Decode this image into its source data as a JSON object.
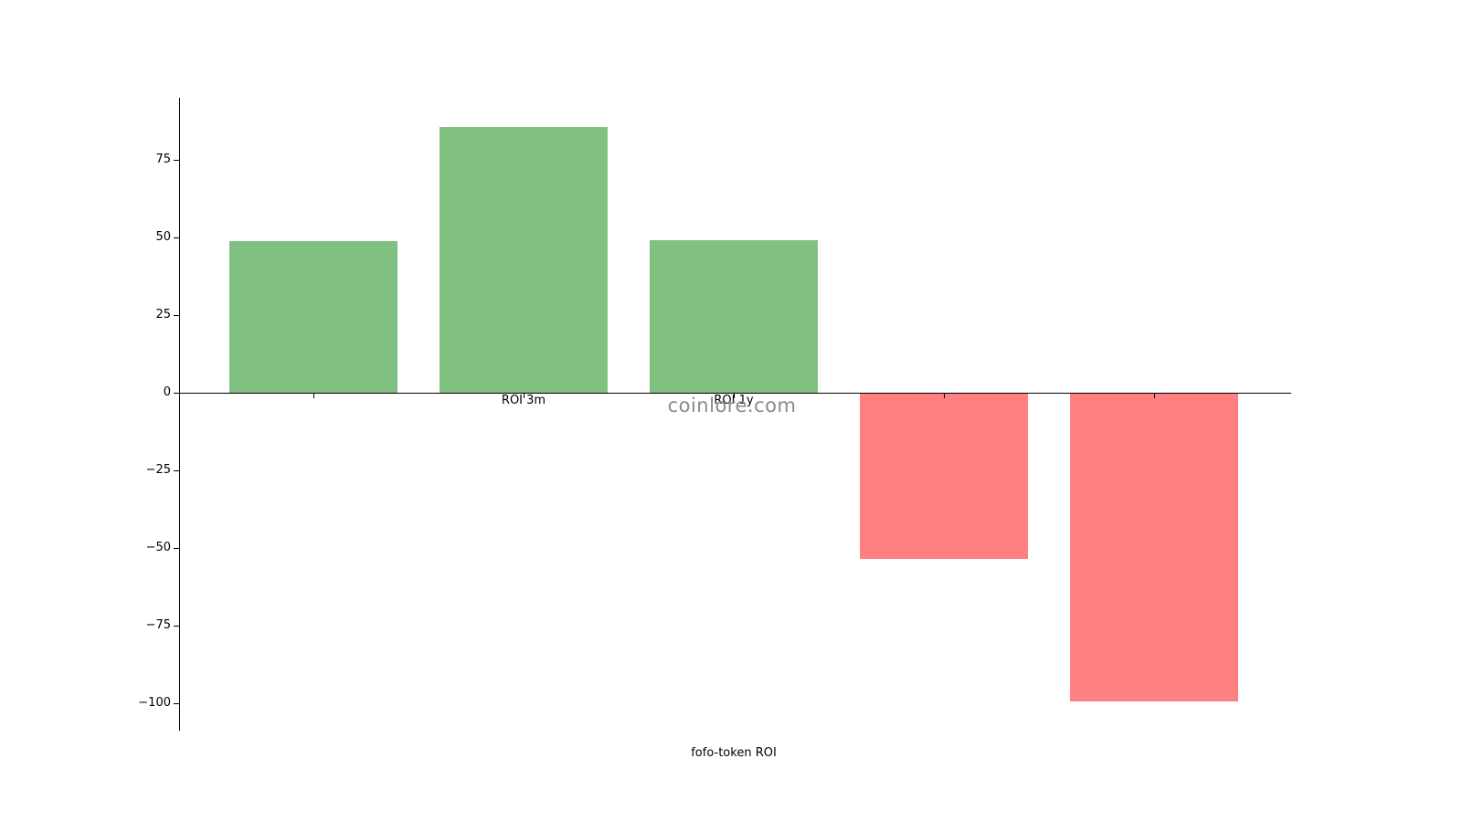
{
  "chart_data": {
    "type": "bar",
    "title": "fofo-token ROI",
    "watermark": "coinlore.com",
    "categories": [
      "",
      "ROI 3m",
      "ROI 1y",
      "",
      ""
    ],
    "values": [
      48.8,
      85.6,
      49.0,
      -53.4,
      -99.4
    ],
    "positive_color": "#80c080",
    "negative_color": "#ff8080",
    "y_ticks": [
      {
        "value": 75,
        "label": "75"
      },
      {
        "value": 50,
        "label": "50"
      },
      {
        "value": 25,
        "label": "25"
      },
      {
        "value": 0,
        "label": "0"
      },
      {
        "value": -25,
        "label": "−25"
      },
      {
        "value": -50,
        "label": "−50"
      },
      {
        "value": -75,
        "label": "−75"
      },
      {
        "value": -100,
        "label": "−100"
      }
    ],
    "ylim": [
      -108.7,
      94.9
    ],
    "xlabel": "",
    "ylabel": "",
    "grid": false,
    "legend_position": "none",
    "axis_color": "#000000",
    "tick_label_color": "#000000",
    "watermark_color": "#8a8a8a",
    "background_color": "#ffffff"
  }
}
